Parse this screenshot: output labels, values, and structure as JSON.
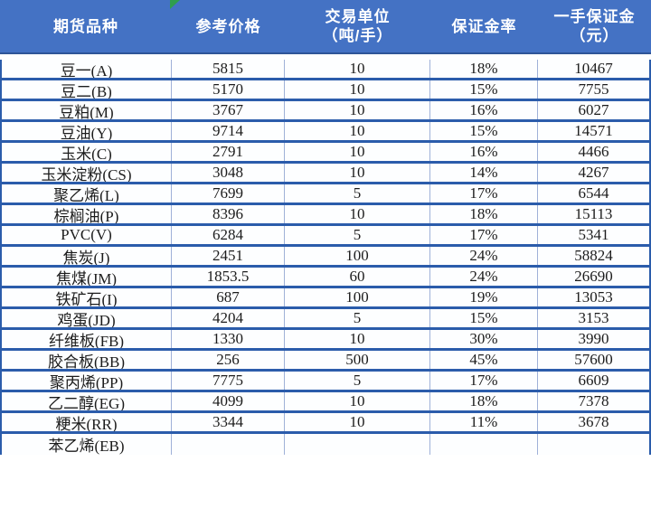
{
  "colors": {
    "header_bg": "#4472c4",
    "header_text": "#ffffff",
    "row_separator": "#2b5cab",
    "column_divider": "#9fb1d8",
    "cell_text": "#1c1c1c",
    "flag_green": "#2f9e4e"
  },
  "icons": {
    "header_corner_flag": "green-triangle"
  },
  "table": {
    "columns": [
      {
        "key": "variety",
        "label": "期货品种"
      },
      {
        "key": "price",
        "label": "参考价格"
      },
      {
        "key": "unit",
        "label": "交易单位\n（吨/手）"
      },
      {
        "key": "margin_rate",
        "label": "保证金率"
      },
      {
        "key": "margin",
        "label": "一手保证金\n（元）"
      }
    ],
    "rows": [
      [
        "豆一(A)",
        "5815",
        "10",
        "18%",
        "10467"
      ],
      [
        "豆二(B)",
        "5170",
        "10",
        "15%",
        "7755"
      ],
      [
        "豆粕(M)",
        "3767",
        "10",
        "16%",
        "6027"
      ],
      [
        "豆油(Y)",
        "9714",
        "10",
        "15%",
        "14571"
      ],
      [
        "玉米(C)",
        "2791",
        "10",
        "16%",
        "4466"
      ],
      [
        "玉米淀粉(CS)",
        "3048",
        "10",
        "14%",
        "4267"
      ],
      [
        "聚乙烯(L)",
        "7699",
        "5",
        "17%",
        "6544"
      ],
      [
        "棕榈油(P)",
        "8396",
        "10",
        "18%",
        "15113"
      ],
      [
        "PVC(V)",
        "6284",
        "5",
        "17%",
        "5341"
      ],
      [
        "焦炭(J)",
        "2451",
        "100",
        "24%",
        "58824"
      ],
      [
        "焦煤(JM)",
        "1853.5",
        "60",
        "24%",
        "26690"
      ],
      [
        "铁矿石(I)",
        "687",
        "100",
        "19%",
        "13053"
      ],
      [
        "鸡蛋(JD)",
        "4204",
        "5",
        "15%",
        "3153"
      ],
      [
        "纤维板(FB)",
        "1330",
        "10",
        "30%",
        "3990"
      ],
      [
        "胶合板(BB)",
        "256",
        "500",
        "45%",
        "57600"
      ],
      [
        "聚丙烯(PP)",
        "7775",
        "5",
        "17%",
        "6609"
      ],
      [
        "乙二醇(EG)",
        "4099",
        "10",
        "18%",
        "7378"
      ],
      [
        "粳米(RR)",
        "3344",
        "10",
        "11%",
        "3678"
      ]
    ],
    "partial_row": [
      "苯乙烯(EB)",
      "",
      "",
      "",
      ""
    ]
  }
}
